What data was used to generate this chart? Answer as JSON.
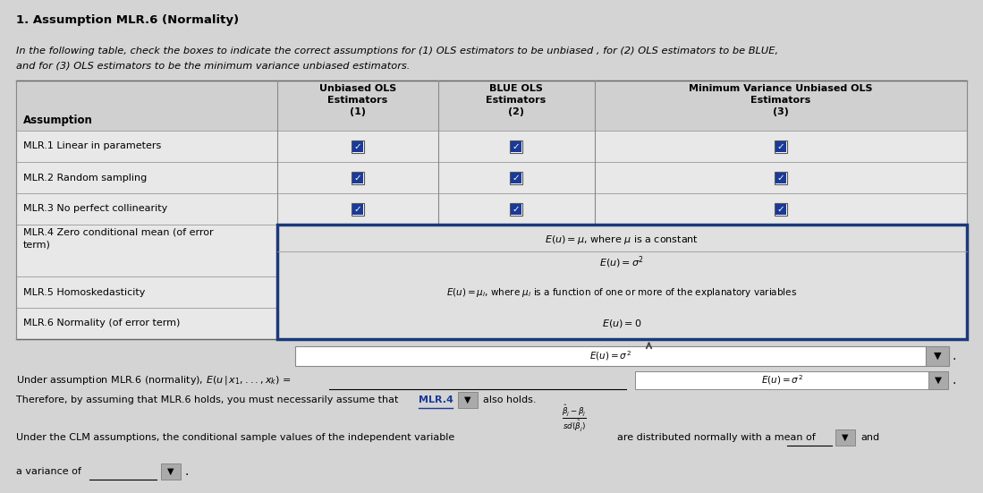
{
  "title": "1. Assumption MLR.6 (Normality)",
  "bg_color": "#c8c8c8",
  "page_bg": "#d4d4d4",
  "intro_line1": "In the following table, check the boxes to indicate the correct assumptions for (1) OLS estimators to be unbiased , for (2) OLS estimators to be BLUE,",
  "intro_line2": "and for (3) OLS estimators to be the minimum variance unbiased estimators.",
  "col0_header": "Assumption",
  "col1_header": "Unbiased OLS\nEstimators\n(1)",
  "col2_header": "BLUE OLS\nEstimators\n(2)",
  "col3_header": "Minimum Variance Unbiased OLS\nEstimators\n(3)",
  "check_color": "#1a3a9a",
  "blue_border": "#1a3a7a",
  "row_labels": [
    "MLR.1 Linear in parameters",
    "MLR.2 Random sampling",
    "MLR.3 No perfect collinearity",
    "MLR.4 Zero conditional mean (of error\nterm)",
    "MLR.5 Homoskedasticity",
    "MLR.6 Normality (of error term)"
  ],
  "blue_box_texts": [
    "$E(u) = \\mu$, where $\\mu$ is a constant",
    "$E(u) = \\sigma^2$",
    "$E(u) = \\mu_i$, where $\\mu_i$ is a function of one or more of the explanatory variables",
    "$E(u) = 0$"
  ],
  "dropdown_text": "$E(u) = \\sigma^2$",
  "footer1a": "Under assumption MLR.6 (normality), $E(u\\,|\\,x_1,...,x_k)$ =",
  "footer1_dropdown": "$E(u) = \\sigma^2$",
  "footer2a": "Therefore, by assuming that MLR.6 holds, you must necessarily assume that",
  "footer2_mlr4": "MLR.4",
  "footer2b": "also holds.",
  "footer3a": "Under the CLM assumptions, the conditional sample values of the independent variable",
  "footer3b": "are distributed normally with a mean of",
  "footer3c": "and",
  "footer4": "a variance of"
}
